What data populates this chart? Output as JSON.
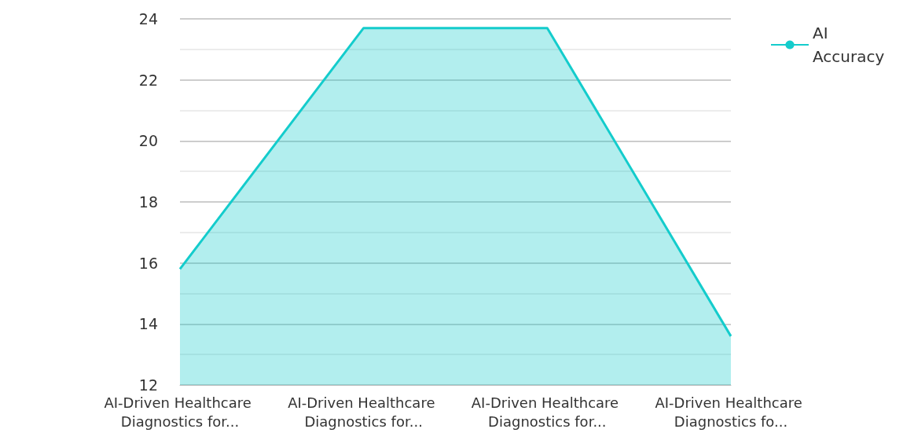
{
  "chart_data": {
    "type": "area",
    "categories": [
      "AI-Driven Healthcare Diagnostics for...",
      "AI-Driven Healthcare Diagnostics for...",
      "AI-Driven Healthcare Diagnostics for...",
      "AI-Driven Healthcare Diagnostics fo..."
    ],
    "series": [
      {
        "name": "AI Accuracy",
        "color": "#14cccc",
        "values": [
          15.8,
          23.7,
          23.7,
          13.6
        ]
      }
    ],
    "ylim": [
      12,
      24
    ],
    "yticks": [
      12,
      {
        "value": 13,
        "label": null
      },
      14,
      {
        "value": 15,
        "label": null
      },
      16,
      {
        "value": 17,
        "label": null
      },
      18,
      {
        "value": 19,
        "label": null
      },
      20,
      {
        "value": 21,
        "label": null
      },
      22,
      {
        "value": 23,
        "label": null
      },
      24
    ],
    "grid": true,
    "legend": "top right",
    "marker": "none"
  }
}
